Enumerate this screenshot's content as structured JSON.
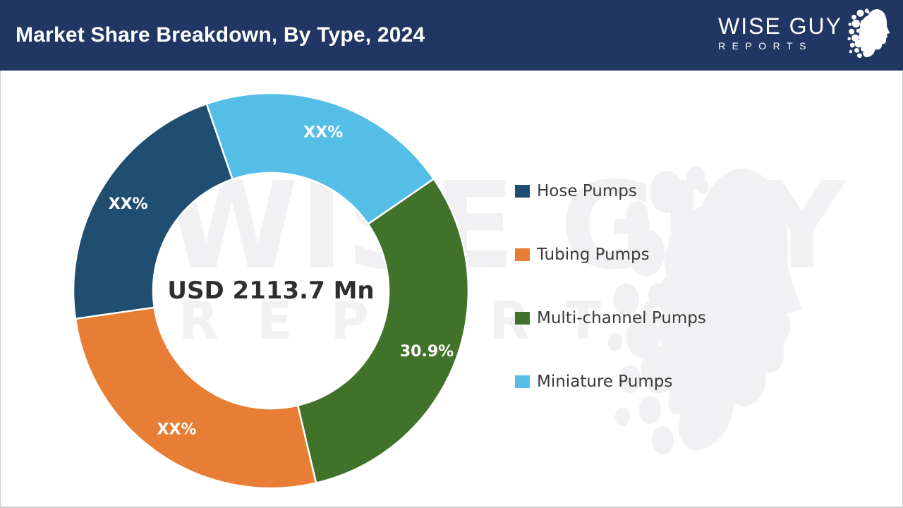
{
  "header": {
    "title": "Market Share Breakdown, By Type, 2024",
    "bg_color": "#203764",
    "logo": {
      "line1": "WISE GUY",
      "line2": "REPORTS"
    }
  },
  "watermark": {
    "line1": "WISE GUY",
    "line2": "REPORTS"
  },
  "chart_data": {
    "type": "pie",
    "subtype": "donut",
    "title": "Market Share Breakdown, By Type, 2024",
    "center_label": "USD 2113.7 Mn",
    "start_angle_deg": 109,
    "direction": "counterclockwise",
    "legend_position": "right",
    "outer_radius_px": 280,
    "inner_radius_px": 167,
    "segments": [
      {
        "label": "Hose Pumps",
        "value_pct": 22.0,
        "display_label": "XX%",
        "color": "#1f4e70"
      },
      {
        "label": "Tubing Pumps",
        "value_pct": 26.4,
        "display_label": "XX%",
        "color": "#e87e35"
      },
      {
        "label": "Multi-channel Pumps",
        "value_pct": 30.9,
        "display_label": "30.9%",
        "color": "#40722a"
      },
      {
        "label": "Miniature Pumps",
        "value_pct": 20.7,
        "display_label": "XX%",
        "color": "#54bee6"
      }
    ]
  },
  "colors": {
    "header_bg": "#203764",
    "watermark": "#f1f1f4",
    "legend_text": "#3a3a3a",
    "center_text": "#2f2f2f",
    "border": "#cbcbcb"
  }
}
